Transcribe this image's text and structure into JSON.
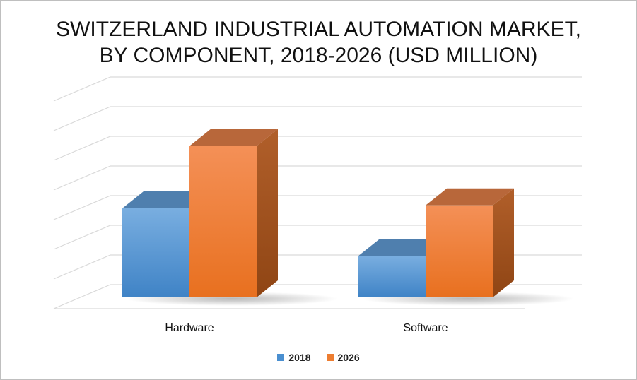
{
  "chart_data": {
    "type": "bar",
    "title_lines": [
      "SWITZERLAND INDUSTRIAL AUTOMATION MARKET,",
      "BY COMPONENT, 2018-2026 (USD MILLION)"
    ],
    "categories": [
      "Hardware",
      "Software"
    ],
    "series": [
      {
        "name": "2018",
        "values": [
          3.0,
          1.4
        ],
        "color": "#5b9bd5"
      },
      {
        "name": "2026",
        "values": [
          5.1,
          3.1
        ],
        "color": "#ed7d31"
      }
    ],
    "ylim": [
      0,
      7
    ],
    "gridlines": 7,
    "grid": true,
    "legend_position": "bottom",
    "style": "3d-clustered-column"
  }
}
